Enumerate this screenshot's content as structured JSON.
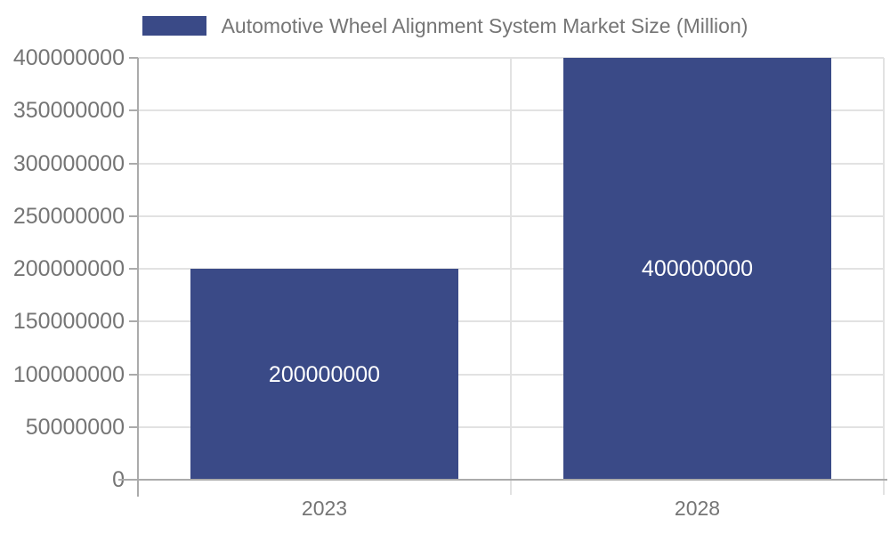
{
  "chart_data": {
    "type": "bar",
    "title": "Automotive Wheel Alignment System Market Size (Million)",
    "categories": [
      "2023",
      "2028"
    ],
    "series": [
      {
        "name": "Automotive Wheel Alignment System Market Size (Million)",
        "values": [
          200000000,
          400000000
        ]
      }
    ],
    "bar_value_labels": [
      "200000000",
      "400000000"
    ],
    "ytick_labels": [
      "0",
      "50000000",
      "100000000",
      "150000000",
      "200000000",
      "250000000",
      "300000000",
      "350000000",
      "400000000"
    ],
    "ylim": [
      0,
      400000000
    ],
    "ytick_step": 50000000,
    "xlabel": "",
    "ylabel": "",
    "grid": true,
    "legend_position": "top-center",
    "colors": {
      "bar": "#3a4a87",
      "axis_text": "#757575",
      "bar_label_text": "#ffffff",
      "gridline": "#e2e2e2",
      "axis_line": "#ababab",
      "background": "#ffffff"
    }
  }
}
